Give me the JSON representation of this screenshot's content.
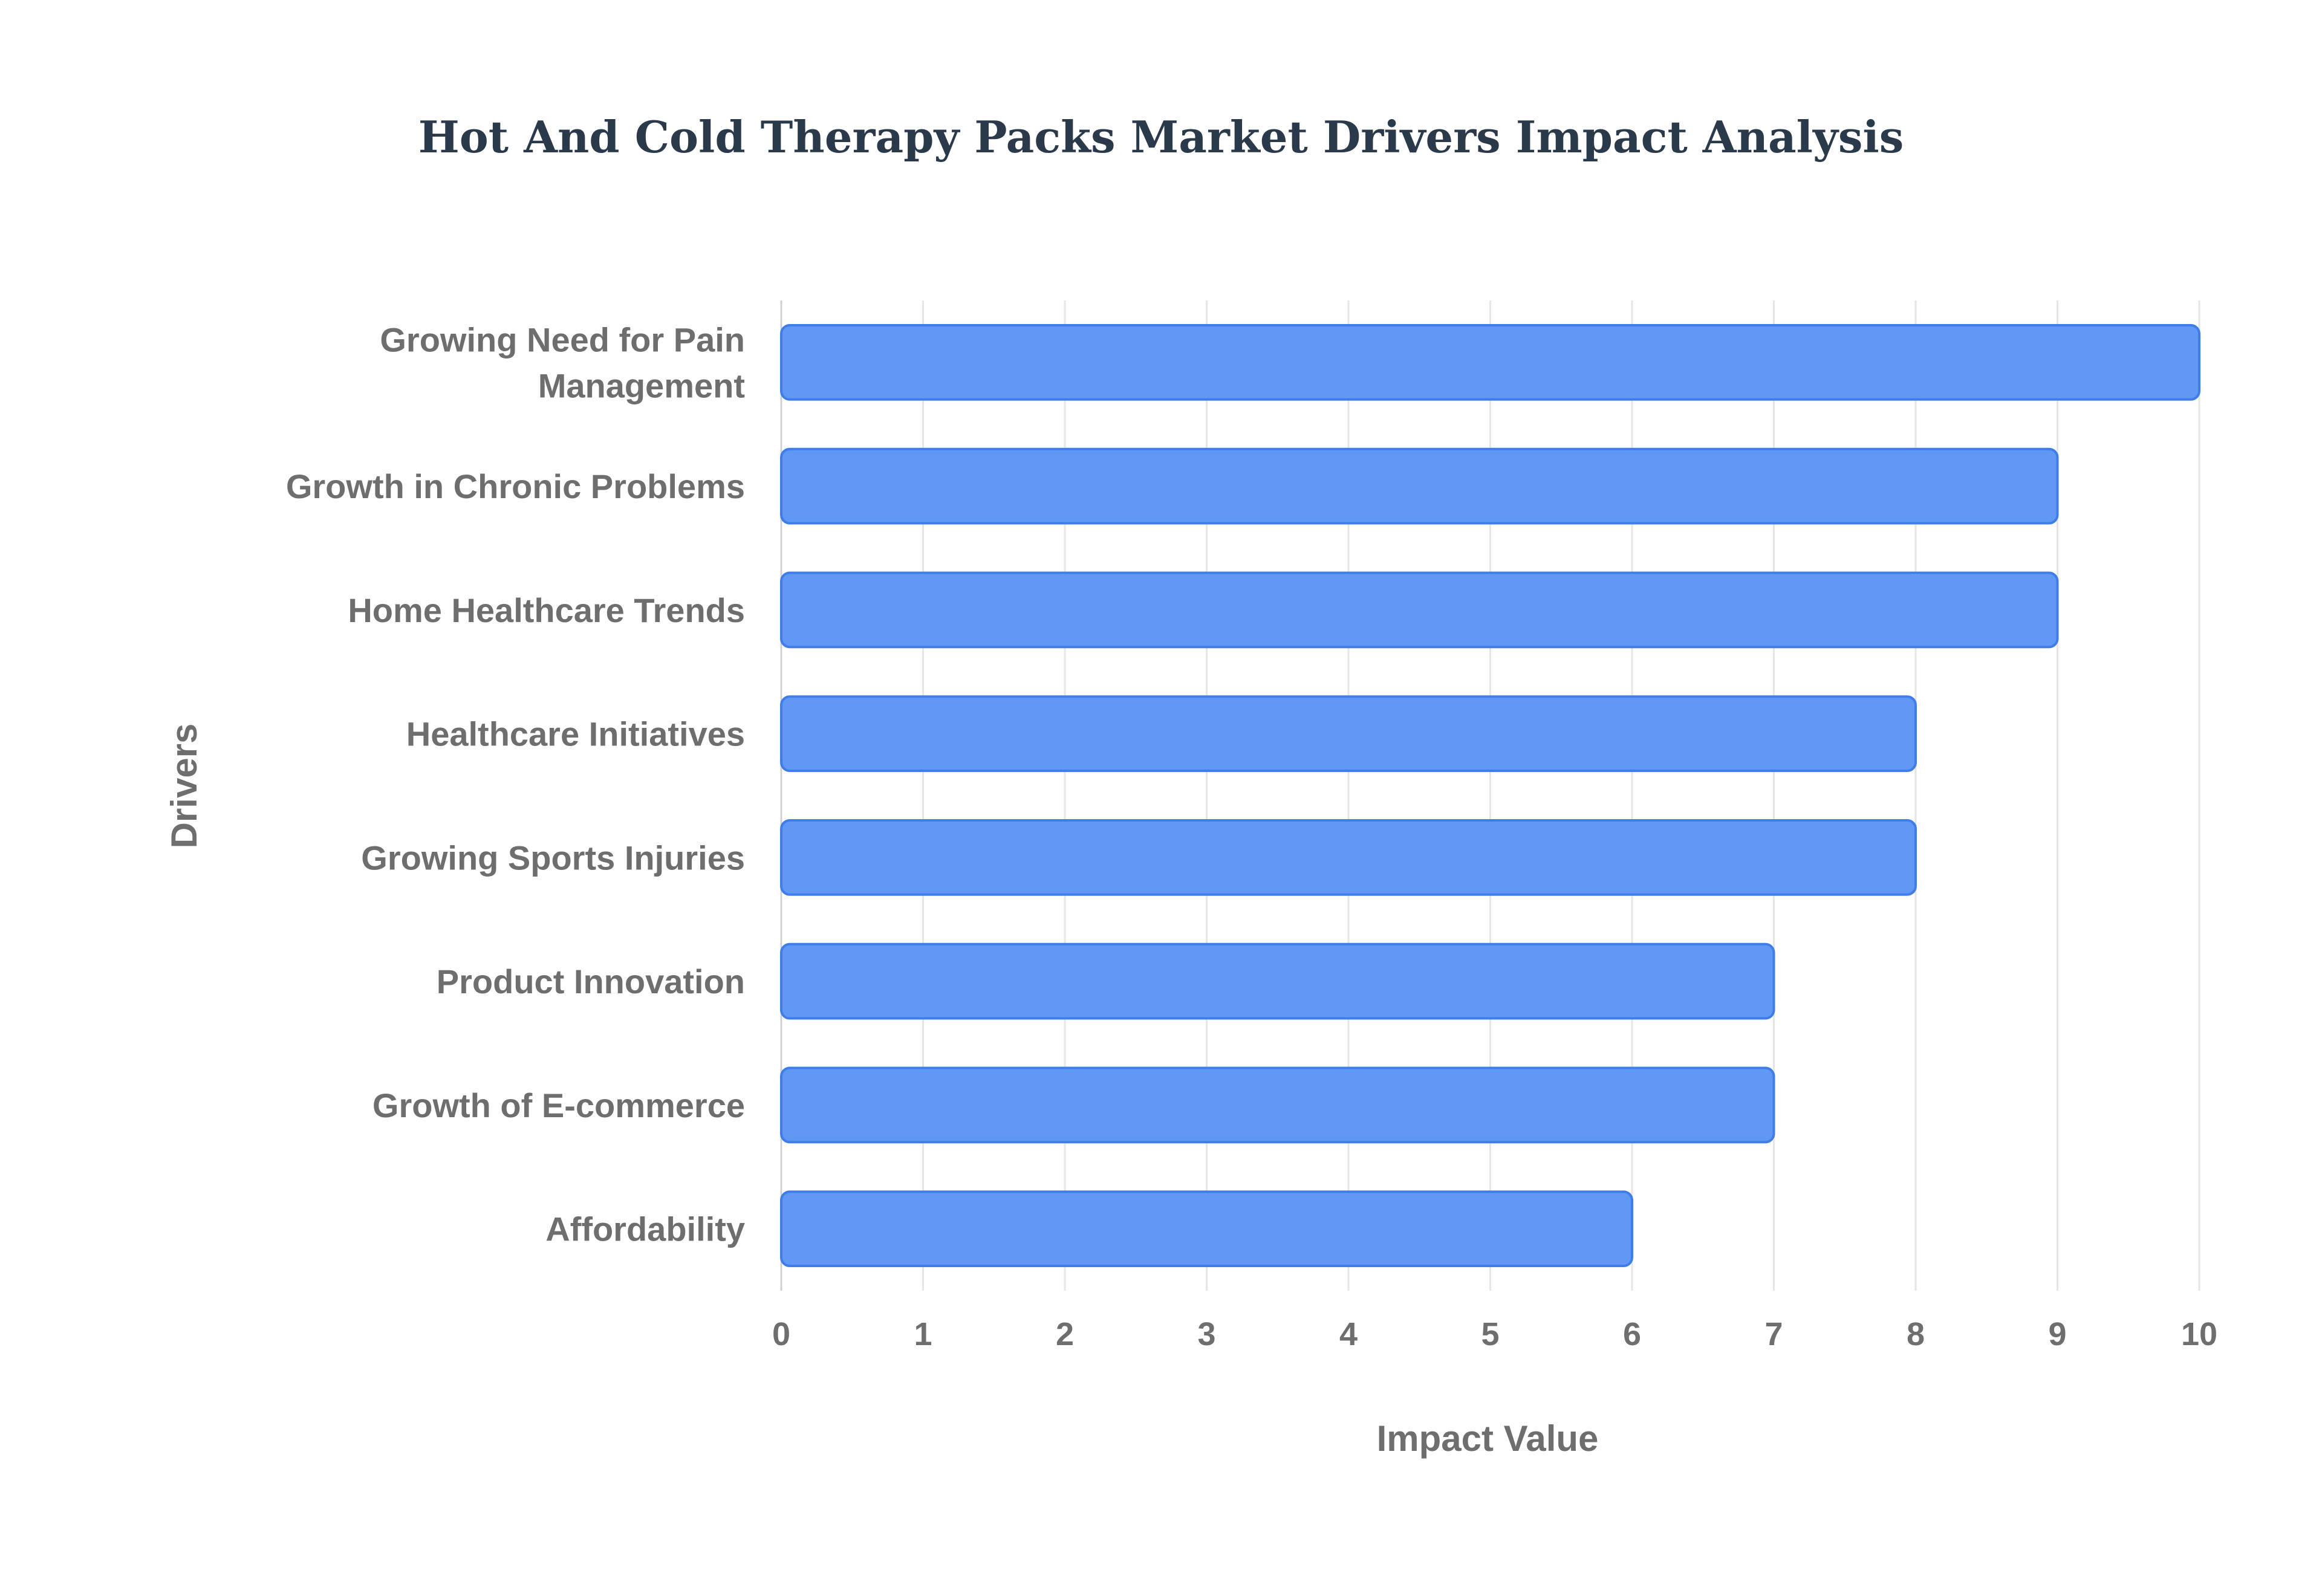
{
  "chart_data": {
    "type": "bar",
    "orientation": "horizontal",
    "title": "Hot And Cold Therapy Packs Market Drivers Impact Analysis",
    "xlabel": "Impact Value",
    "ylabel": "Drivers",
    "xlim": [
      0,
      10
    ],
    "x_ticks": [
      0,
      1,
      2,
      3,
      4,
      5,
      6,
      7,
      8,
      9,
      10
    ],
    "grid": true,
    "bar_color": "#6298f5",
    "bar_border_color": "#3f7ee8",
    "categories": [
      "Growing Need for Pain Management",
      "Growth in Chronic Problems",
      "Home Healthcare Trends",
      "Healthcare Initiatives",
      "Growing Sports Injuries",
      "Product Innovation",
      "Growth of E-commerce",
      "Affordability"
    ],
    "category_lines": [
      [
        "Growing Need for Pain",
        "Management"
      ],
      [
        "Growth in Chronic Problems"
      ],
      [
        "Home Healthcare Trends"
      ],
      [
        "Healthcare Initiatives"
      ],
      [
        "Growing Sports Injuries"
      ],
      [
        "Product Innovation"
      ],
      [
        "Growth of E-commerce"
      ],
      [
        "Affordability"
      ]
    ],
    "values": [
      10,
      9,
      9,
      8,
      8,
      7,
      7,
      6
    ]
  }
}
